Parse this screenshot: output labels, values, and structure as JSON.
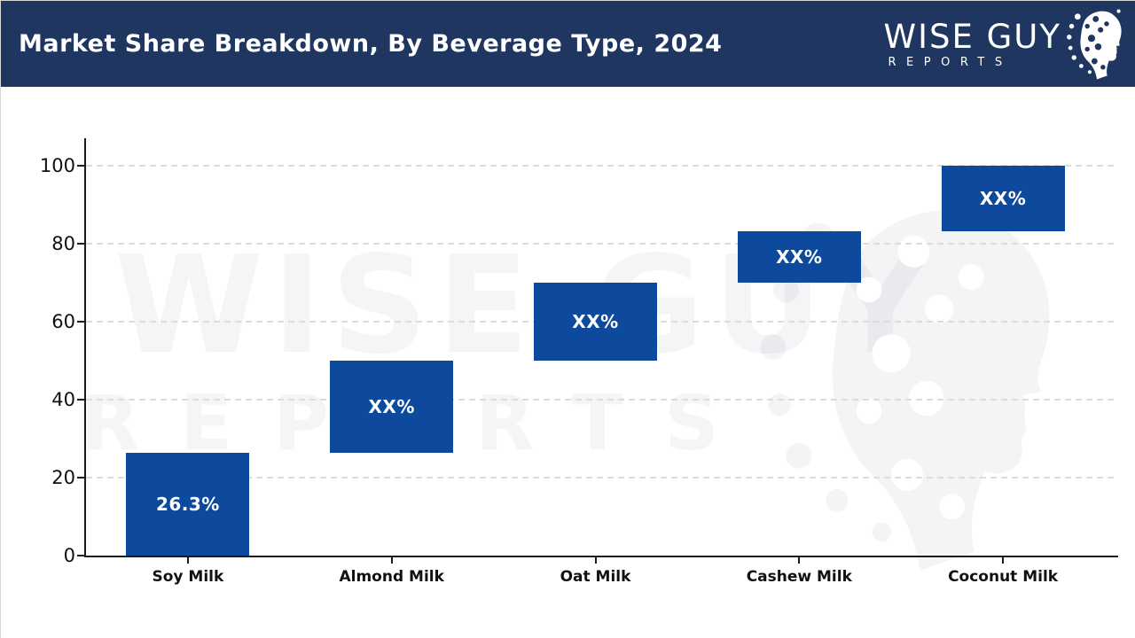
{
  "header": {
    "title": "Market Share Breakdown, By Beverage Type, 2024",
    "bg_color": "#1f3660",
    "logo": {
      "line1": "WISE GUY",
      "line2": "REPORTS"
    }
  },
  "watermark": {
    "line1": "WISE GUY",
    "line2": "REPORTS"
  },
  "chart_data": {
    "type": "bar",
    "subtype": "waterfall-floating-bars",
    "title": "Market Share Breakdown, By Beverage Type, 2024",
    "categories": [
      "Soy Milk",
      "Almond Milk",
      "Oat Milk",
      "Cashew Milk",
      "Coconut Milk"
    ],
    "bars": [
      {
        "label": "26.3%",
        "start": 0,
        "end": 26.3
      },
      {
        "label": "XX%",
        "start": 26.3,
        "end": 50
      },
      {
        "label": "XX%",
        "start": 50,
        "end": 70
      },
      {
        "label": "XX%",
        "start": 70,
        "end": 83.2
      },
      {
        "label": "XX%",
        "start": 83.2,
        "end": 100
      }
    ],
    "yticks": [
      0,
      20,
      40,
      60,
      80,
      100
    ],
    "ylim": [
      0,
      107
    ],
    "xlabel": "",
    "ylabel": "",
    "grid": "horizontal-dashed",
    "legend": "none",
    "bar_color": "#0d4a9e",
    "bar_label_color": "#ffffff"
  }
}
